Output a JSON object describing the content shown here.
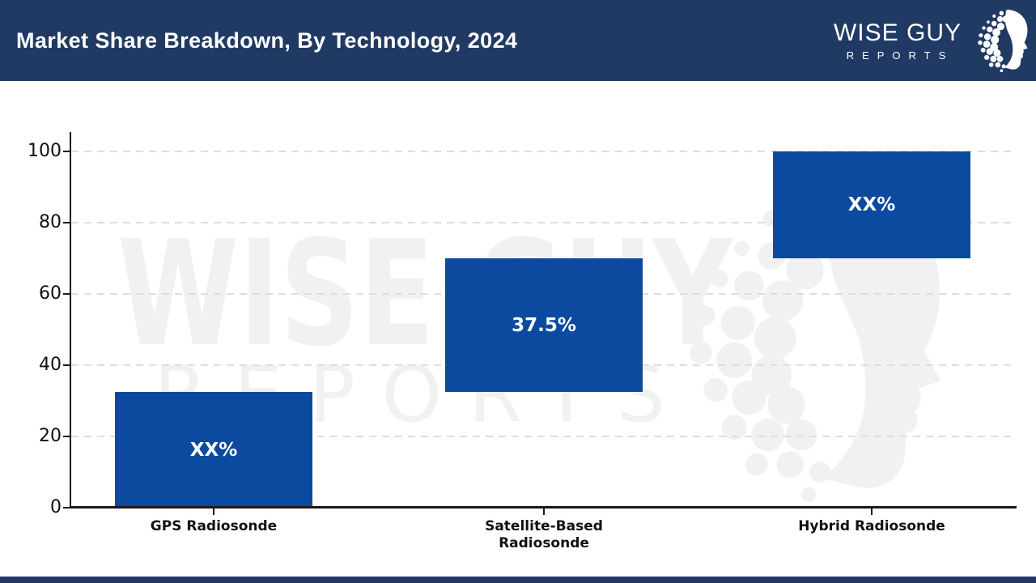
{
  "header": {
    "title": "Market Share Breakdown, By Technology, 2024",
    "logo": {
      "name": "WISE GUY",
      "sub": "REPORTS"
    }
  },
  "watermark": {
    "name": "WISE GUY",
    "sub": "REPORTS"
  },
  "chart_data": {
    "type": "bar",
    "variant": "floating-segment-waterfall",
    "title": "Market Share Breakdown, By Technology, 2024",
    "categories": [
      "GPS Radiosonde",
      "Satellite-Based\nRadiosonde",
      "Hybrid Radiosonde"
    ],
    "bars": [
      {
        "category": "GPS Radiosonde",
        "start": 0,
        "end": 32.5,
        "label": "XX%"
      },
      {
        "category": "Satellite-Based Radiosonde",
        "start": 32.5,
        "end": 70,
        "label": "37.5%"
      },
      {
        "category": "Hybrid Radiosonde",
        "start": 70,
        "end": 100,
        "label": "XX%"
      }
    ],
    "xlabel": "",
    "ylabel": "",
    "yticks": [
      0,
      20,
      40,
      60,
      80,
      100
    ],
    "ylim": [
      0,
      105
    ],
    "grid": "horizontal-dashed",
    "legend": "none",
    "bar_color": "#0b4a9e"
  },
  "colors": {
    "header_bg": "#213a64",
    "footer_bg": "#213a64",
    "bar": "#0b4a9e",
    "grid": "#dedede",
    "axis": "#1a1a1a",
    "watermark": "#f1f1f1"
  }
}
